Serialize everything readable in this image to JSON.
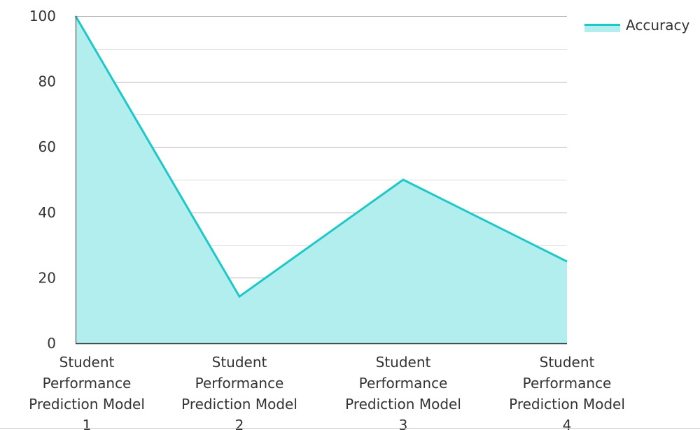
{
  "chart_data": {
    "type": "area",
    "categories": [
      [
        "Student",
        "Performance",
        "Prediction Model",
        "1"
      ],
      [
        "Student",
        "Performance",
        "Prediction Model",
        "2"
      ],
      [
        "Student",
        "Performance",
        "Prediction Model",
        "3"
      ],
      [
        "Student",
        "Performance",
        "Prediction Model",
        "4"
      ]
    ],
    "series": [
      {
        "name": "Accuracy",
        "values": [
          100,
          14.3,
          50,
          25
        ],
        "line_color": "#1ec8c8",
        "fill_color": "#b2eeee"
      }
    ],
    "title": "",
    "xlabel": "",
    "ylabel": "",
    "ylim": [
      0,
      100
    ],
    "yticks": [
      "0",
      "20",
      "40",
      "60",
      "80",
      "100"
    ],
    "grid": true,
    "legend_position": "top-right",
    "colors": {
      "major_grid": "#b8b8b8",
      "minor_grid": "#dddddd",
      "axis": "#333333",
      "bottom_border": "#cccccc"
    }
  }
}
